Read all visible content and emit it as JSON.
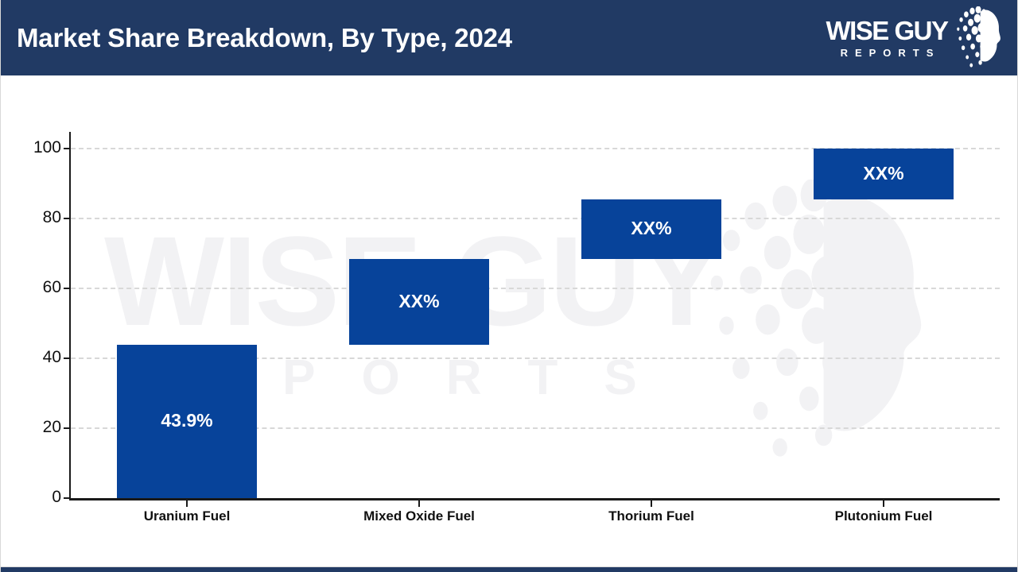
{
  "header": {
    "title": "Market Share Breakdown, By Type, 2024",
    "logo": {
      "line1": "WISE GUY",
      "line2": "REPORTS"
    }
  },
  "watermark": {
    "line1": "WISE GUY",
    "line2": "REPORTS"
  },
  "chart_data": {
    "type": "bar",
    "subtype": "waterfall",
    "title": "Market Share Breakdown, By Type, 2024",
    "xlabel": "",
    "ylabel": "",
    "categories": [
      "Uranium Fuel",
      "Mixed Oxide Fuel",
      "Thorium Fuel",
      "Plutonium Fuel"
    ],
    "segments": [
      {
        "start": 0,
        "end": 43.9,
        "label": "43.9%"
      },
      {
        "start": 43.9,
        "end": 68.4,
        "label": "XX%"
      },
      {
        "start": 68.4,
        "end": 85.5,
        "label": "XX%"
      },
      {
        "start": 85.5,
        "end": 100,
        "label": "XX%"
      }
    ],
    "ylim": [
      0,
      100
    ],
    "yticks": [
      0,
      20,
      40,
      60,
      80,
      100
    ],
    "grid": "horizontal-dashed",
    "legend": "none",
    "bar_color": "#07439a",
    "bar_label_color": "#ffffff",
    "grid_color": "#d8d8d8",
    "axis_color": "#1a1a1a",
    "tick_label_color": "#111111"
  },
  "colors": {
    "header_bg": "#213a64",
    "footer_bg": "#213a64",
    "body_bg": "#ffffff",
    "watermark": "#f2f2f4",
    "border": "#d9d9d9"
  }
}
